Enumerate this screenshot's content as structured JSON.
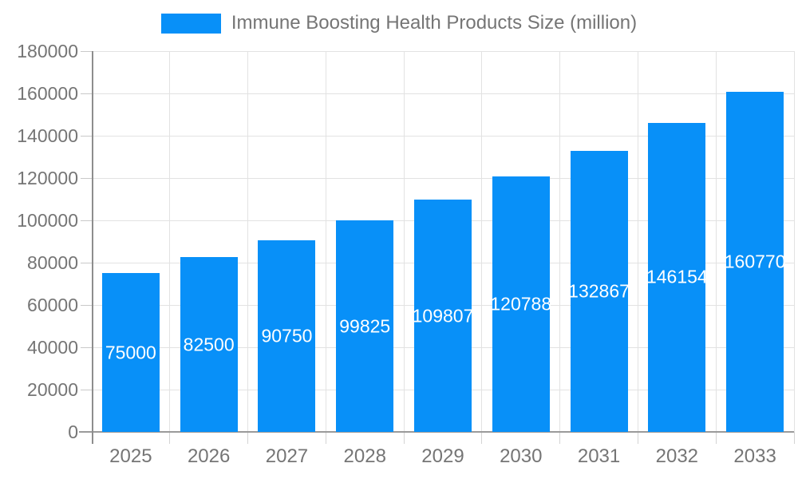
{
  "chart_data": {
    "type": "bar",
    "legend": "Immune Boosting Health Products Size (million)",
    "legend_position": "top-center",
    "categories": [
      "2025",
      "2026",
      "2027",
      "2028",
      "2029",
      "2030",
      "2031",
      "2032",
      "2033"
    ],
    "series": [
      {
        "name": "Immune Boosting Health Products Size (million)",
        "values": [
          75000,
          82500,
          90750,
          99825,
          109807,
          120788,
          132867,
          146154,
          160770
        ]
      }
    ],
    "value_labels": [
      "75000",
      "82500",
      "90750",
      "99825",
      "109807",
      "120788",
      "132867",
      "146154",
      "160770"
    ],
    "ylim": [
      0,
      180000
    ],
    "ytick_step": 20000,
    "ytick_labels": [
      "0",
      "20000",
      "40000",
      "60000",
      "80000",
      "100000",
      "120000",
      "140000",
      "160000",
      "180000"
    ],
    "grid": true,
    "colors": {
      "bar": "#0890F8",
      "value_label": "#FFFFFF",
      "axis_text": "#757575",
      "grid_line": "#E2E2E2",
      "axis_line": "#9A9A9A",
      "background": "#FFFFFF"
    }
  }
}
